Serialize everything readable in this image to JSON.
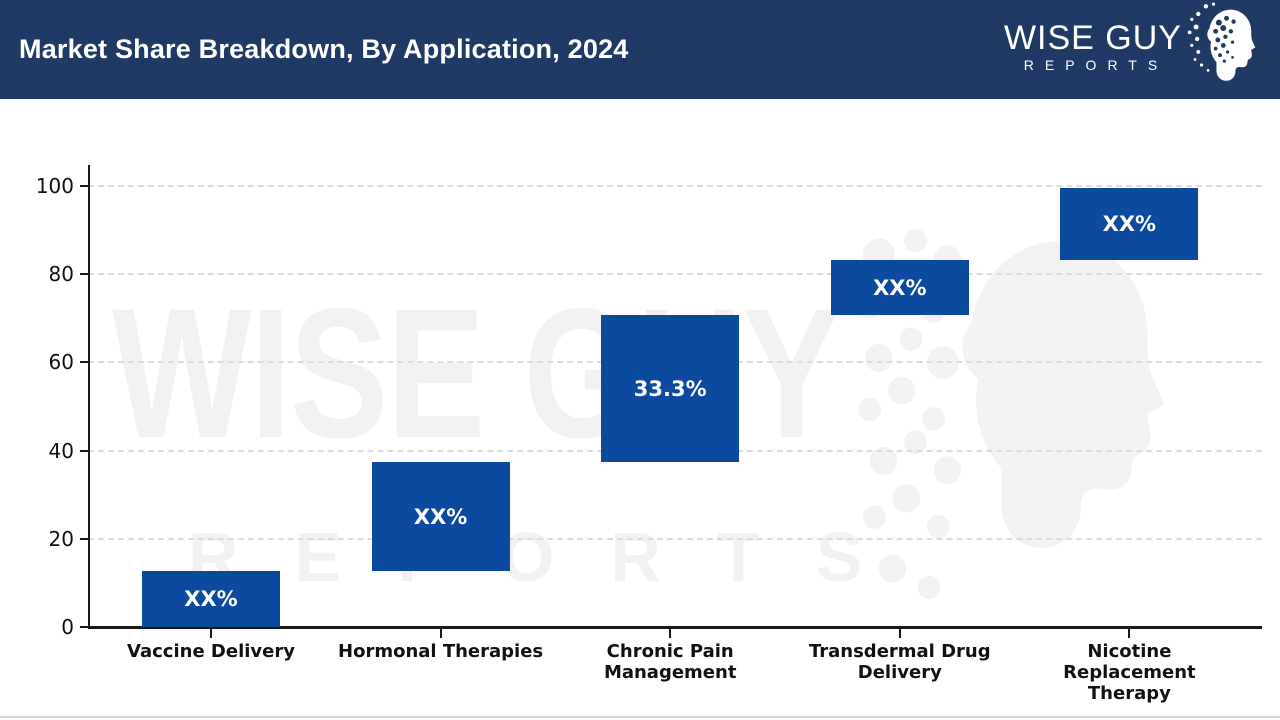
{
  "header": {
    "title": "Market Share Breakdown, By Application, 2024",
    "bg_color": "#203a66",
    "logo": {
      "line1": "WISE GUY",
      "line2": "REPORTS"
    }
  },
  "watermark": {
    "line1": "WISE GUY",
    "line2": "REPORTS"
  },
  "chart_data": {
    "type": "bar",
    "subtype": "waterfall",
    "title": "Market Share Breakdown, By Application, 2024",
    "categories": [
      "Vaccine Delivery",
      "Hormonal Therapies",
      "Chronic Pain Management",
      "Transdermal Drug Delivery",
      "Nicotine Replacement Therapy"
    ],
    "categories_lines": [
      [
        "Vaccine Delivery"
      ],
      [
        "Hormonal Therapies"
      ],
      [
        "Chronic Pain",
        "Management"
      ],
      [
        "Transdermal Drug",
        "Delivery"
      ],
      [
        "Nicotine",
        "Replacement",
        "Therapy"
      ]
    ],
    "segments": [
      {
        "start": 0,
        "end": 12.6,
        "value": 12.6,
        "label": "XX%"
      },
      {
        "start": 12.6,
        "end": 37.4,
        "value": 24.8,
        "label": "XX%"
      },
      {
        "start": 37.4,
        "end": 70.7,
        "value": 33.3,
        "label": "33.3%"
      },
      {
        "start": 70.7,
        "end": 83.2,
        "value": 12.5,
        "label": "XX%"
      },
      {
        "start": 83.2,
        "end": 99.5,
        "value": 16.3,
        "label": "XX%"
      }
    ],
    "y_ticks": [
      0,
      20,
      40,
      60,
      80,
      100
    ],
    "ylim": [
      0,
      105
    ],
    "grid": "horizontal-dashed",
    "legend": "none",
    "bar_color": "#0b4a9e",
    "bar_label_color": "#ffffff"
  }
}
